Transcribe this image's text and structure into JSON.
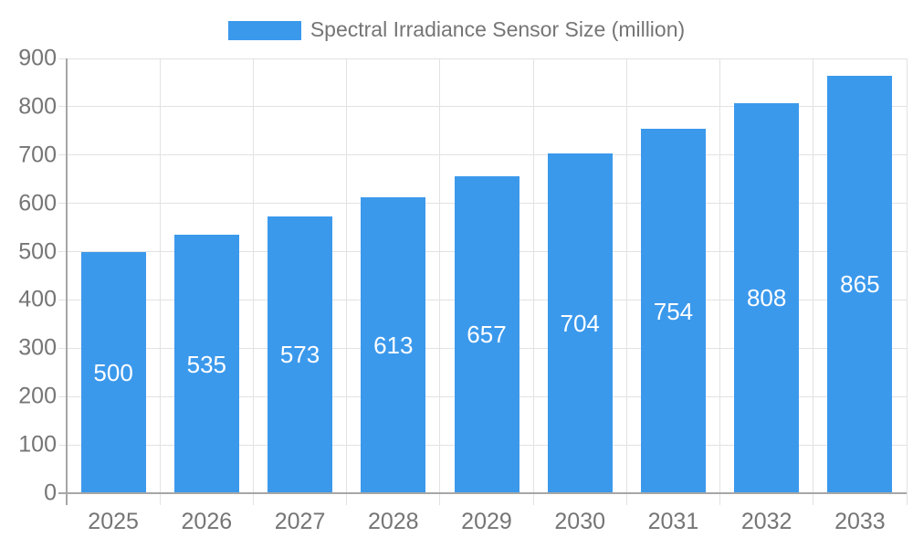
{
  "chart_data": {
    "type": "bar",
    "title": "",
    "legend": "Spectral Irradiance Sensor Size (million)",
    "legend_position": "top-center",
    "categories": [
      "2025",
      "2026",
      "2027",
      "2028",
      "2029",
      "2030",
      "2031",
      "2032",
      "2033"
    ],
    "values": [
      500,
      535,
      573,
      613,
      657,
      704,
      754,
      808,
      865
    ],
    "xlabel": "",
    "ylabel": "",
    "ylim": [
      0,
      900
    ],
    "yticks": [
      0,
      100,
      200,
      300,
      400,
      500,
      600,
      700,
      800,
      900
    ],
    "grid": "horizontal gridlines at every 100 plus vertical gridlines at category boundaries",
    "value_labels": "white numbers centered inside each bar",
    "colors": {
      "bar": "#3b99ec",
      "value_label": "#ffffff",
      "axis": "#a6a6a6",
      "gridline": "#e2e2e2",
      "tick_label": "#757575",
      "legend_text": "#757575",
      "background": "#ffffff"
    }
  }
}
